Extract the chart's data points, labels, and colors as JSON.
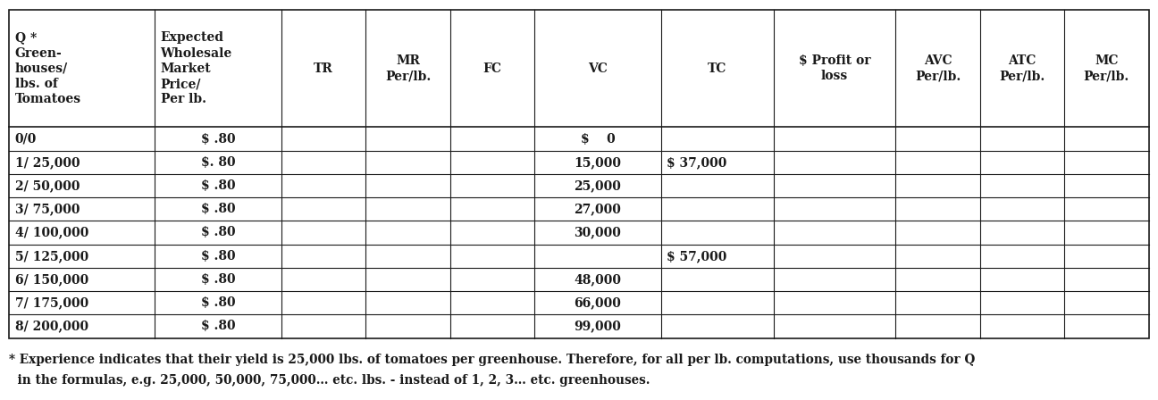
{
  "headers": [
    "Q *\nGreen-\nhouses/\nlbs. of\nTomatoes",
    "Expected\nWholesale\nMarket\nPrice/\nPer lb.",
    "TR",
    "MR\nPer/lb.",
    "FC",
    "VC",
    "TC",
    "$ Profit or\nloss",
    "AVC\nPer/lb.",
    "ATC\nPer/lb.",
    "MC\nPer/lb."
  ],
  "rows": [
    [
      "0/0",
      "$ .80",
      "",
      "",
      "",
      "$    0",
      "",
      "",
      "",
      "",
      ""
    ],
    [
      "1/ 25,000",
      "$. 80",
      "",
      "",
      "",
      "15,000",
      "$ 37,000",
      "",
      "",
      "",
      ""
    ],
    [
      "2/ 50,000",
      "$ .80",
      "",
      "",
      "",
      "25,000",
      "",
      "",
      "",
      "",
      ""
    ],
    [
      "3/ 75,000",
      "$ .80",
      "",
      "",
      "",
      "27,000",
      "",
      "",
      "",
      "",
      ""
    ],
    [
      "4/ 100,000",
      "$ .80",
      "",
      "",
      "",
      "30,000",
      "",
      "",
      "",
      "",
      ""
    ],
    [
      "5/ 125,000",
      "$ .80",
      "",
      "",
      "",
      "",
      "$ 57,000",
      "",
      "",
      "",
      ""
    ],
    [
      "6/ 150,000",
      "$ .80",
      "",
      "",
      "",
      "48,000",
      "",
      "",
      "",
      "",
      ""
    ],
    [
      "7/ 175,000",
      "$ .80",
      "",
      "",
      "",
      "66,000",
      "",
      "",
      "",
      "",
      ""
    ],
    [
      "8/ 200,000",
      "$ .80",
      "",
      "",
      "",
      "99,000",
      "",
      "",
      "",
      "",
      ""
    ]
  ],
  "footnote_line1": "* Experience indicates that their yield is 25,000 lbs. of tomatoes per greenhouse. Therefore, for all per lb. computations, use thousands for Q",
  "footnote_line2": "  in the formulas, e.g. 25,000, 50,000, 75,000… etc. lbs. - instead of 1, 2, 3… etc. greenhouses.",
  "col_widths_rel": [
    1.55,
    1.35,
    0.9,
    0.9,
    0.9,
    1.35,
    1.2,
    1.3,
    0.9,
    0.9,
    0.9
  ],
  "background_color": "#ffffff",
  "line_color": "#1a1a1a",
  "text_color": "#1a1a1a",
  "font_size": 10,
  "header_font_size": 10,
  "footnote_font_size": 9.8,
  "fig_width": 12.96,
  "fig_height": 4.48,
  "dpi": 100
}
